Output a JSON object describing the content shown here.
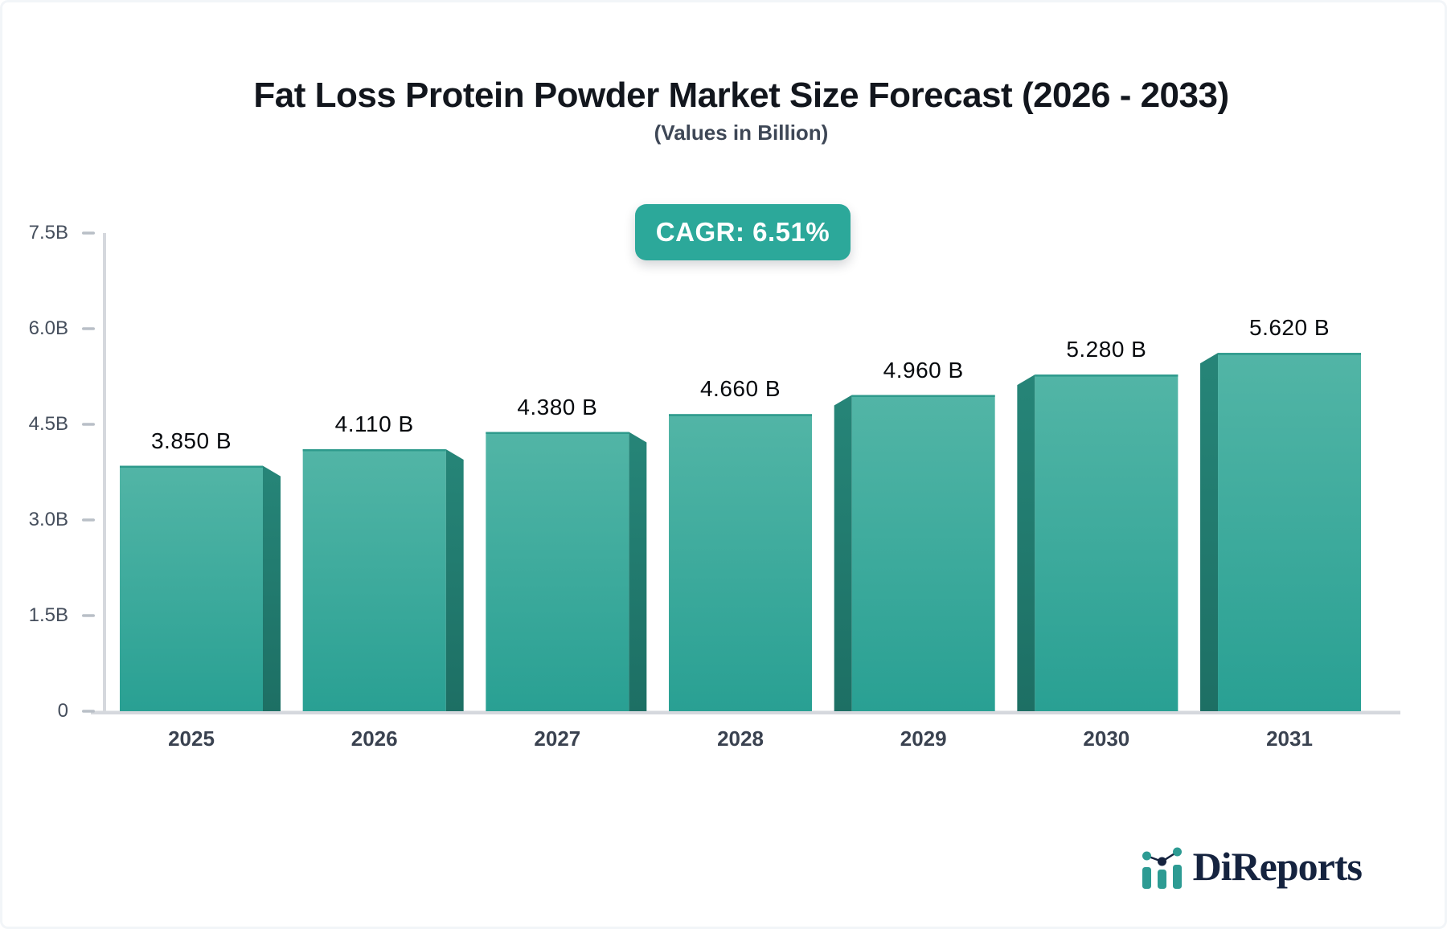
{
  "header": {
    "title": "Fat Loss Protein Powder Market Size Forecast (2026 - 2033)",
    "subtitle": "(Values in Billion)",
    "cagr_badge": "CAGR: 6.51%"
  },
  "chart_data": {
    "type": "bar",
    "title": "Fat Loss Protein Powder Market Size Forecast (2026 - 2033)",
    "subtitle": "(Values in Billion)",
    "cagr_percent": 6.51,
    "unit": "Billion",
    "categories": [
      "2025",
      "2026",
      "2027",
      "2028",
      "2029",
      "2030",
      "2031"
    ],
    "values": [
      3.85,
      4.11,
      4.38,
      4.66,
      4.96,
      5.28,
      5.62
    ],
    "value_labels": [
      "3.850 B",
      "4.110 B",
      "4.380 B",
      "4.660 B",
      "4.960 B",
      "5.280 B",
      "5.620 B"
    ],
    "xlabel": "",
    "ylabel": "",
    "ylim": [
      0,
      7.5
    ],
    "yticks": [
      0,
      1.5,
      3.0,
      4.5,
      6.0,
      7.5
    ],
    "ytick_labels": [
      "0",
      "1.5B",
      "3.0B",
      "4.5B",
      "6.0B",
      "7.5B"
    ],
    "grid": false,
    "legend": false,
    "perspective": "center-vanishing 3D: bars left of center show right side face, bars right of center show left side face",
    "colors": {
      "bar_front_top": "#52b5a6",
      "bar_front_bottom": "#29a093",
      "bar_top_edge": "#2e9a8c",
      "bar_side_top": "#268578",
      "bar_side_bottom": "#1d6f64",
      "axis_line": "#d5d8dd",
      "tick_mark": "#b9bfc7",
      "tick_label": "#454e5c",
      "x_label": "#3a4250",
      "value_label": "#06090d",
      "badge_bg": "#2ca89a",
      "badge_text": "#ffffff"
    }
  },
  "branding": {
    "logo_text": "DiReports",
    "logo_icon": "bar-chart-with-trend-line",
    "logo_teal": "#2d9b93",
    "logo_navy": "#15233f"
  }
}
